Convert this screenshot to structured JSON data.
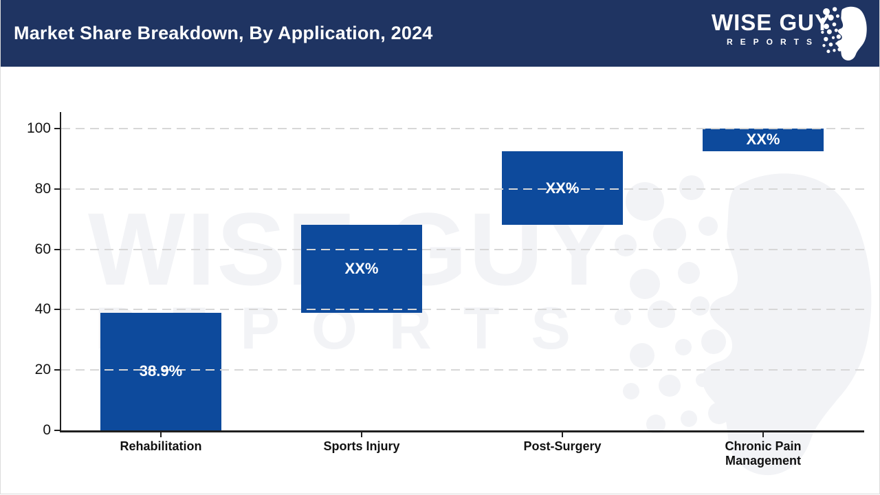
{
  "header": {
    "title": "Market Share Breakdown, By Application, 2024",
    "logo": {
      "line1": "WISE GUY",
      "line2": "REPORTS"
    }
  },
  "watermark": {
    "line1": "WISE GUY",
    "line2": "REPORTS"
  },
  "chart_data": {
    "type": "bar",
    "subtype": "waterfall-floating-bars",
    "title": "Market Share Breakdown, By Application, 2024",
    "categories": [
      "Rehabilitation",
      "Sports Injury",
      "Post-Surgery",
      "Chronic Pain Management"
    ],
    "bars": [
      {
        "category": "Rehabilitation",
        "start": 0,
        "end": 38.9,
        "label": "38.9%"
      },
      {
        "category": "Sports Injury",
        "start": 38.9,
        "end": 68.1,
        "label": "XX%"
      },
      {
        "category": "Post-Surgery",
        "start": 68.1,
        "end": 92.5,
        "label": "XX%"
      },
      {
        "category": "Chronic Pain Management",
        "start": 92.5,
        "end": 100,
        "label": "XX%"
      }
    ],
    "xlabel": "",
    "ylabel": "",
    "ylim": [
      0,
      100
    ],
    "yticks": [
      0,
      20,
      40,
      60,
      80,
      100
    ],
    "grid": "horizontal-dashed, drawn over bars",
    "legend": "none",
    "bar_color": "#0d4a9c",
    "bar_label_color": "#ffffff"
  },
  "colors": {
    "header_bg": "#1f3462",
    "bar": "#0d4a9c",
    "grid": "#d7d7d7",
    "axis": "#1f1f1f",
    "watermark": "#f2f3f6"
  }
}
